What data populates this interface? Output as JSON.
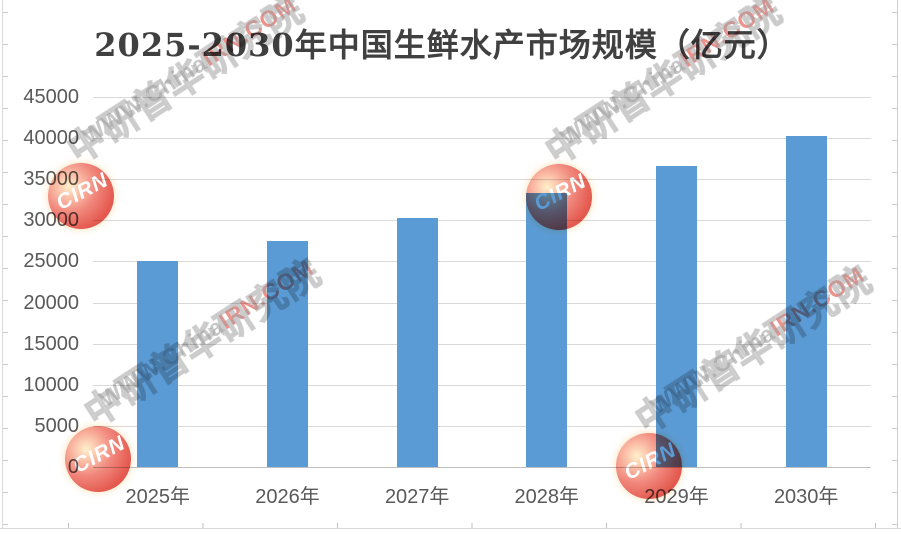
{
  "chart_data": {
    "type": "bar",
    "title": "2025-2030年中国生鲜水产市场规模（亿元）",
    "categories": [
      "2025年",
      "2026年",
      "2027年",
      "2028年",
      "2029年",
      "2030年"
    ],
    "values": [
      25000,
      27500,
      30250,
      33275,
      36603,
      40263
    ],
    "ylim": [
      0,
      45000
    ],
    "yticks": [
      0,
      5000,
      10000,
      15000,
      20000,
      25000,
      30000,
      35000,
      40000,
      45000
    ],
    "xlabel": "",
    "ylabel": "",
    "grid": true,
    "legend": false,
    "bar_color": "#5B9BD5"
  },
  "watermark": {
    "url_gray": "WWW.China",
    "url_red": "IRN.COM",
    "company": "中研普华研究院",
    "badge": "CIRN"
  },
  "colors": {
    "bar": "#5B9BD5",
    "title_text": "#404040",
    "axis_text": "#595959",
    "gridline": "#D9D9D9",
    "axis_line": "#BFBFBF",
    "watermark_red": "#E24A40"
  }
}
